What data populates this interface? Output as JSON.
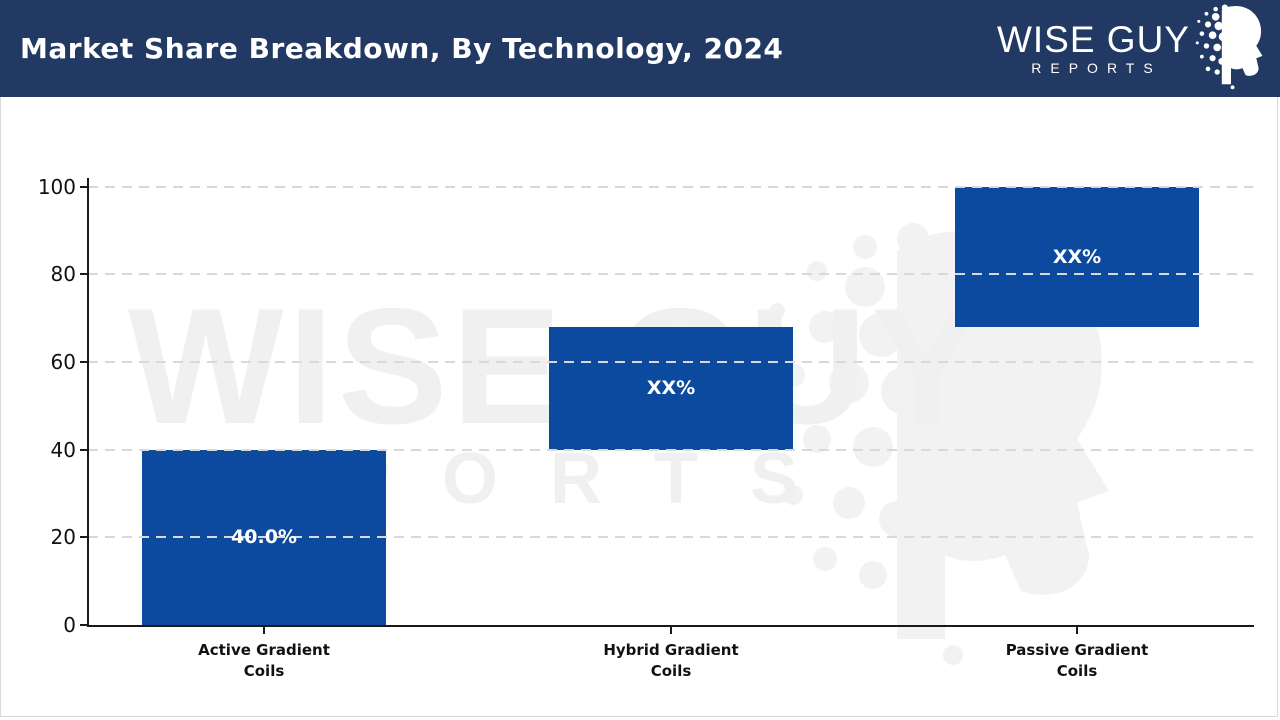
{
  "header": {
    "title": "Market Share Breakdown, By Technology, 2024",
    "bg_color": "#223a63",
    "logo": {
      "wordmark": "WISE GUY",
      "tagline": "REPORTS"
    }
  },
  "watermark": {
    "wordmark": "WISE GUY",
    "tagline": "REPORTS"
  },
  "chart_data": {
    "type": "bar",
    "variant": "stepped-waterfall-market-share",
    "title": "Market Share Breakdown, By Technology, 2024",
    "categories": [
      "Active Gradient Coils",
      "Hybrid Gradient Coils",
      "Passive Gradient Coils"
    ],
    "segments": [
      {
        "category": "Active Gradient Coils",
        "start": 0,
        "end": 40,
        "label": "40.0%"
      },
      {
        "category": "Hybrid Gradient Coils",
        "start": 40,
        "end": 68,
        "label": "XX%"
      },
      {
        "category": "Passive Gradient Coils",
        "start": 68,
        "end": 100,
        "label": "XX%"
      }
    ],
    "ylim": [
      0,
      100
    ],
    "yticks": [
      0,
      20,
      40,
      60,
      80,
      100
    ],
    "bar_color": "#0b4a9e",
    "axis_color": "#1a1a1a",
    "grid": {
      "horizontal_dashed": true,
      "color": "#d9d9d9"
    },
    "legend": null
  }
}
